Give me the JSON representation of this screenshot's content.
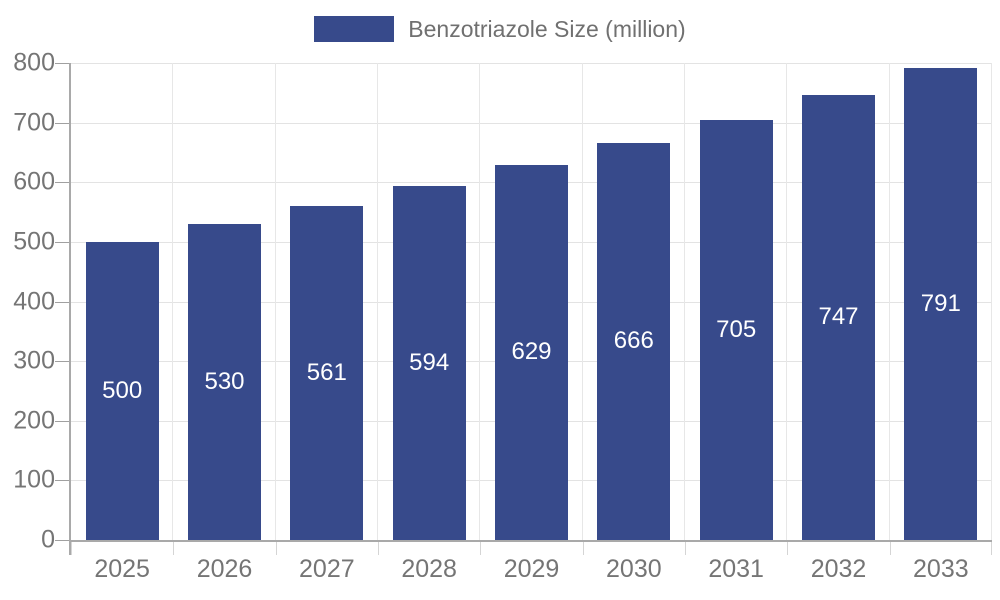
{
  "chart_data": {
    "type": "bar",
    "title": "",
    "legend": {
      "label": "Benzotriazole Size (million)",
      "position": "top-center"
    },
    "categories": [
      "2025",
      "2026",
      "2027",
      "2028",
      "2029",
      "2030",
      "2031",
      "2032",
      "2033"
    ],
    "series": [
      {
        "name": "Benzotriazole Size (million)",
        "values": [
          500,
          530,
          561,
          594,
          629,
          666,
          705,
          747,
          791
        ]
      }
    ],
    "xlabel": "",
    "ylabel": "",
    "ylim": [
      0,
      800
    ],
    "y_ticks": [
      0,
      100,
      200,
      300,
      400,
      500,
      600,
      700,
      800
    ],
    "grid": true,
    "bar_label_position": "inside-center",
    "colors": {
      "bar": "#374a8b",
      "bar_value_text": "#ffffff",
      "axis_line": "#a9a9a9",
      "gridline": "#e3e3e3",
      "tick_text": "#757575",
      "legend_text": "#707070",
      "background": "#ffffff"
    }
  }
}
